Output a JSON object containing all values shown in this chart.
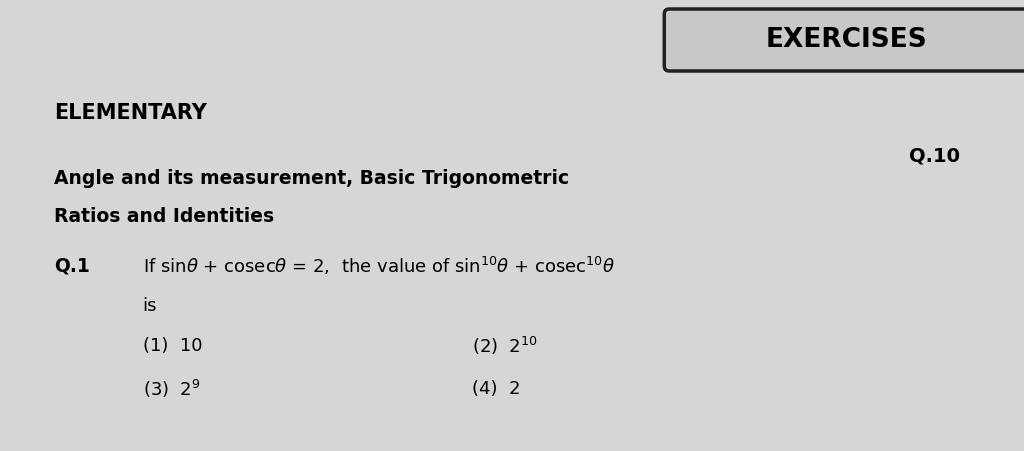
{
  "background_color": "#d6d6d6",
  "exercises_label": "EXERCISES",
  "elementary_label": "ELEMENTARY",
  "q10_label": "Q.10",
  "section_title_line1": "Angle and its measurement, Basic Trigonometric",
  "section_title_line2": "Ratios and Identities",
  "q1_label": "Q.1",
  "question_text": "If sinθ + cosecθ = 2,  the value of sin",
  "question_sup1": "10",
  "question_mid": "θ + cosec",
  "question_sup2": "10",
  "question_end": "θ",
  "question_cont": "is",
  "opt1": "(1)  10",
  "opt2": "(2)  2",
  "opt2_sup": "10",
  "opt3": "(3)  2",
  "opt3_sup": "9",
  "opt4": "(4)  2"
}
